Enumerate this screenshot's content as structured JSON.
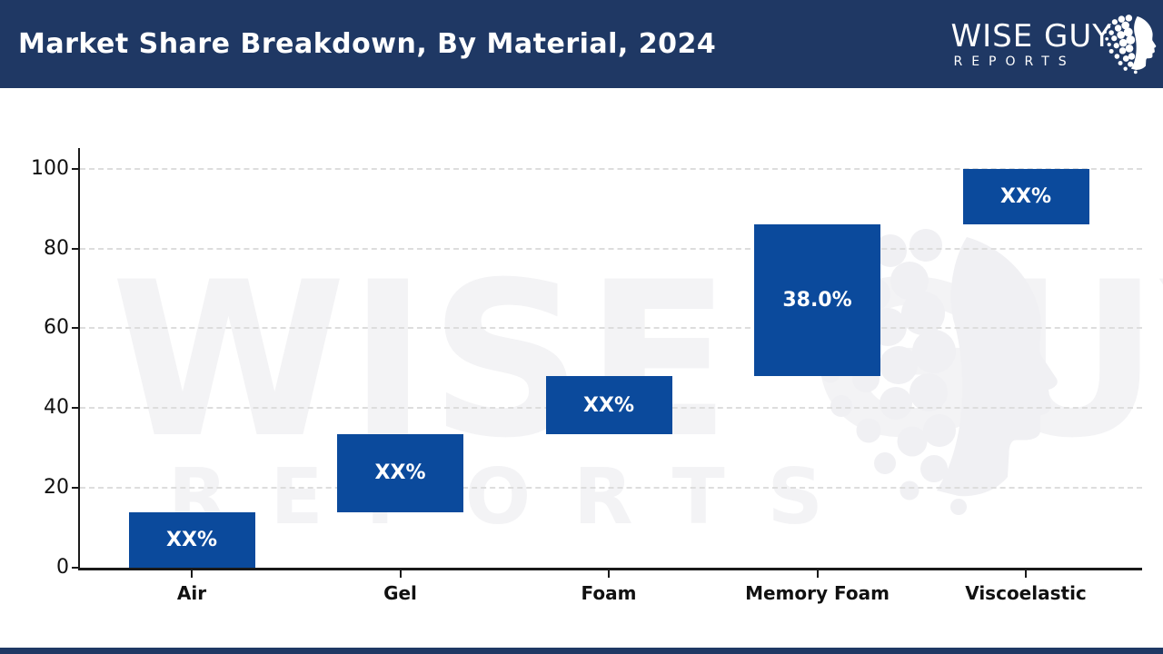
{
  "header": {
    "title": "Market Share Breakdown, By Material, 2024"
  },
  "brand": {
    "name": "WISE GUY",
    "tagline": "REPORTS"
  },
  "watermark": {
    "name": "WISE GUY",
    "tagline": "REPORTS"
  },
  "chart_data": {
    "type": "bar",
    "subtype": "floating-waterfall-segments",
    "title": "Market Share Breakdown, By Material, 2024",
    "categories": [
      "Air",
      "Gel",
      "Foam",
      "Memory Foam",
      "Viscoelastic"
    ],
    "segments": [
      {
        "category": "Air",
        "from": 0,
        "to": 14,
        "label": "XX%"
      },
      {
        "category": "Gel",
        "from": 14,
        "to": 33.5,
        "label": "XX%"
      },
      {
        "category": "Foam",
        "from": 33.5,
        "to": 48,
        "label": "XX%"
      },
      {
        "category": "Memory Foam",
        "from": 48,
        "to": 86,
        "label": "38.0%"
      },
      {
        "category": "Viscoelastic",
        "from": 86,
        "to": 100,
        "label": "XX%"
      }
    ],
    "yticks": [
      0,
      20,
      40,
      60,
      80,
      100
    ],
    "ylim": [
      0,
      105
    ],
    "xlabel": "",
    "ylabel": "",
    "grid": "horizontal-dashed",
    "legend": "none",
    "bar_color": "#0b4a9c",
    "bar_label_color": "#ffffff"
  },
  "colors": {
    "header_bg": "#1f3864",
    "footer_bg": "#1f3864",
    "axis": "#1a1a1a",
    "grid": "#dddddd",
    "watermark": "#f3f3f5"
  }
}
